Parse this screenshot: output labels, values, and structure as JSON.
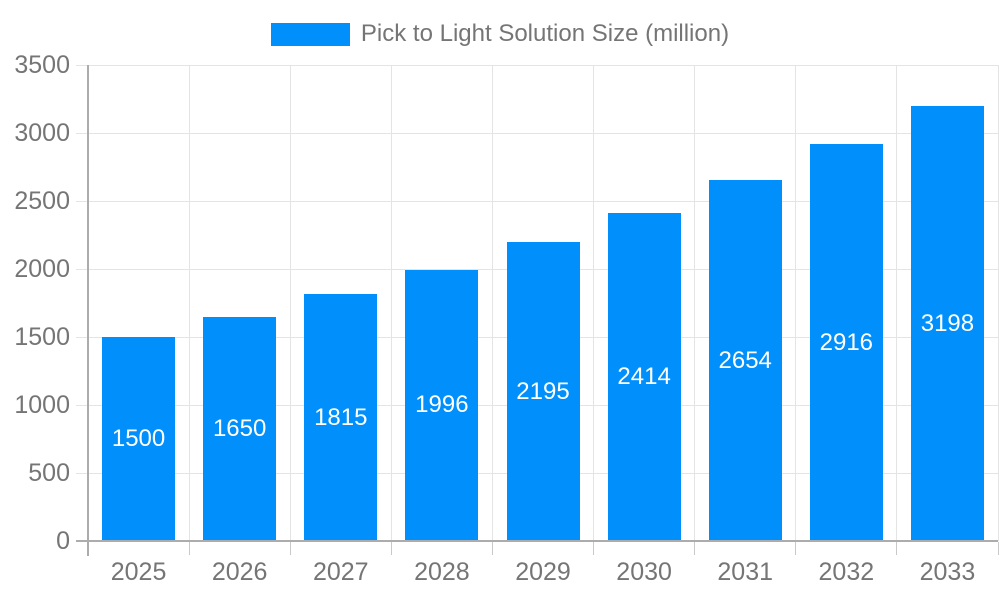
{
  "legend": {
    "label": "Pick to Light Solution Size (million)"
  },
  "chart_data": {
    "type": "bar",
    "title": "Pick to Light Solution Size (million)",
    "categories": [
      "2025",
      "2026",
      "2027",
      "2028",
      "2029",
      "2030",
      "2031",
      "2032",
      "2033"
    ],
    "values": [
      1500,
      1650,
      1815,
      1996,
      2195,
      2414,
      2654,
      2916,
      3198
    ],
    "series": [
      {
        "name": "Pick to Light Solution Size (million)",
        "values": [
          1500,
          1650,
          1815,
          1996,
          2195,
          2414,
          2654,
          2916,
          3198
        ]
      }
    ],
    "xlabel": "",
    "ylabel": "",
    "ylim": [
      0,
      3500
    ],
    "yticks": [
      0,
      500,
      1000,
      1500,
      2000,
      2500,
      3000,
      3500
    ],
    "grid": "on",
    "legend_position": "top-center",
    "bar_label_position": "inside-center",
    "colors": {
      "bar": "#008FFB",
      "bar_label": "#FFFFFF",
      "axis_label": "#757575",
      "gridline": "#E4E4E4",
      "axis_line": "#ACACAC",
      "tick": "#C9C9C9",
      "background": "#FFFFFF"
    }
  }
}
